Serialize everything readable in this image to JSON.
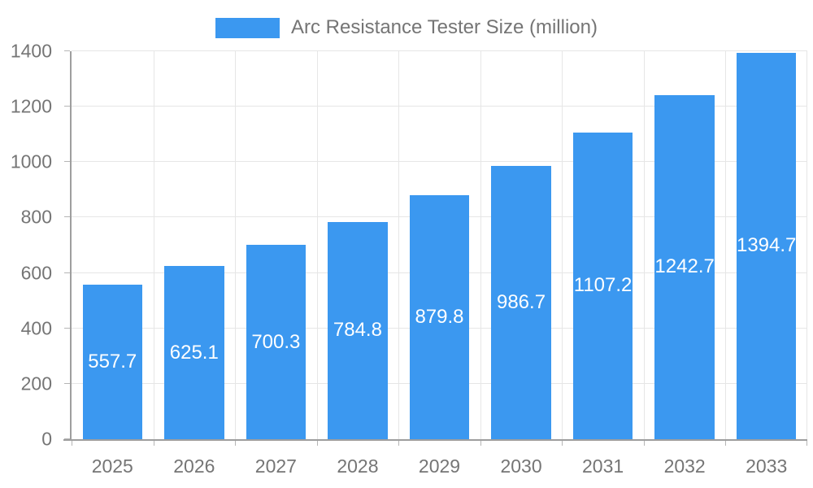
{
  "legend": {
    "label": "Arc Resistance Tester Size (million)"
  },
  "chart_data": {
    "type": "bar",
    "title": "Arc Resistance Tester Size (million)",
    "categories": [
      "2025",
      "2026",
      "2027",
      "2028",
      "2029",
      "2030",
      "2031",
      "2032",
      "2033"
    ],
    "values": [
      557.7,
      625.1,
      700.3,
      784.8,
      879.8,
      986.7,
      1107.2,
      1242.7,
      1394.7
    ],
    "value_labels": [
      "557.7",
      "625.1",
      "700.3",
      "784.8",
      "879.8",
      "986.7",
      "1107.2",
      "1242.7",
      "1394.7"
    ],
    "xlabel": "",
    "ylabel": "",
    "ylim": [
      0,
      1400
    ],
    "ytick_step": 200,
    "ytick_labels": [
      "0",
      "200",
      "400",
      "600",
      "800",
      "1000",
      "1200",
      "1400"
    ],
    "grid": true,
    "grid_vertical": true,
    "legend_position": "top-center",
    "value_label_position": "bar-center",
    "colors": {
      "bar": "#3B98F0",
      "value_label": "#FFFFFF",
      "axis_text": "#757575",
      "grid": "#E6E6E6",
      "axis_line": "#9E9E9E",
      "tick": "#B5B5B5",
      "background": "#FFFFFF"
    }
  }
}
